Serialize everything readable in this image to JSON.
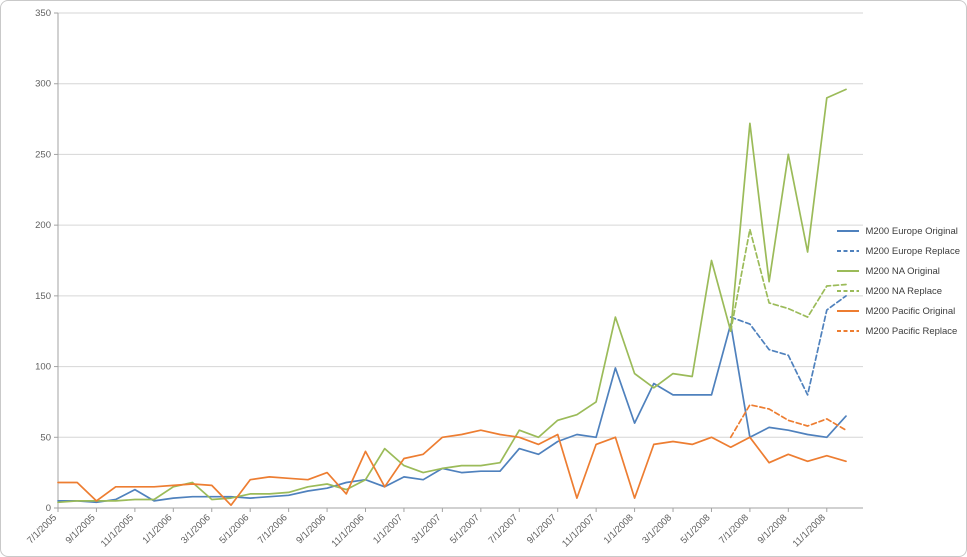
{
  "chart": {
    "background": "#FFFFFF",
    "frame_border_color": "#C9C9C9",
    "gridline_color": "#D6D6D6",
    "axis_color": "#A3A3A3",
    "tick_label_color": "#606060",
    "legend_text_color": "#3C3C3C"
  },
  "chart_data": {
    "type": "line",
    "title": "",
    "xlabel": "",
    "ylabel": "",
    "grid": true,
    "legend_position": "right",
    "ylim": [
      0,
      350
    ],
    "y_ticks": [
      0,
      50,
      100,
      150,
      200,
      250,
      300,
      350
    ],
    "x_tick_labels": [
      "7/1/2005",
      "9/1/2005",
      "11/1/2005",
      "1/1/2006",
      "3/1/2006",
      "5/1/2006",
      "7/1/2006",
      "9/1/2006",
      "11/1/2006",
      "1/1/2007",
      "3/1/2007",
      "5/1/2007",
      "7/1/2007",
      "9/1/2007",
      "11/1/2007",
      "1/1/2008",
      "3/1/2008",
      "5/1/2008",
      "7/1/2008",
      "9/1/2008",
      "11/1/2008"
    ],
    "x": [
      "7/1/2005",
      "8/1/2005",
      "9/1/2005",
      "10/1/2005",
      "11/1/2005",
      "12/1/2005",
      "1/1/2006",
      "2/1/2006",
      "3/1/2006",
      "4/1/2006",
      "5/1/2006",
      "6/1/2006",
      "7/1/2006",
      "8/1/2006",
      "9/1/2006",
      "10/1/2006",
      "11/1/2006",
      "12/1/2006",
      "1/1/2007",
      "2/1/2007",
      "3/1/2007",
      "4/1/2007",
      "5/1/2007",
      "6/1/2007",
      "7/1/2007",
      "8/1/2007",
      "9/1/2007",
      "10/1/2007",
      "11/1/2007",
      "12/1/2007",
      "1/1/2008",
      "2/1/2008",
      "3/1/2008",
      "4/1/2008",
      "5/1/2008",
      "6/1/2008",
      "7/1/2008",
      "8/1/2008",
      "9/1/2008",
      "10/1/2008",
      "11/1/2008",
      "12/1/2008"
    ],
    "series": [
      {
        "name": "M200 Europe Original",
        "color": "#4F81BD",
        "dash": "solid",
        "values": [
          5,
          5,
          4,
          6,
          13,
          5,
          7,
          8,
          8,
          8,
          7,
          8,
          9,
          12,
          14,
          18,
          20,
          15,
          22,
          20,
          28,
          25,
          26,
          26,
          42,
          38,
          47,
          52,
          50,
          99,
          60,
          88,
          80,
          80,
          80,
          130,
          50,
          57,
          55,
          52,
          50,
          65
        ]
      },
      {
        "name": "M200 Europe Replace",
        "color": "#4F81BD",
        "dash": "dashed",
        "values": [
          null,
          null,
          null,
          null,
          null,
          null,
          null,
          null,
          null,
          null,
          null,
          null,
          null,
          null,
          null,
          null,
          null,
          null,
          null,
          null,
          null,
          null,
          null,
          null,
          null,
          null,
          null,
          null,
          null,
          null,
          null,
          null,
          null,
          null,
          null,
          135,
          130,
          112,
          108,
          80,
          140,
          150
        ]
      },
      {
        "name": "M200 NA Original",
        "color": "#9BBB59",
        "dash": "solid",
        "values": [
          4,
          5,
          5,
          5,
          6,
          6,
          15,
          18,
          6,
          7,
          10,
          10,
          11,
          15,
          17,
          13,
          20,
          42,
          30,
          25,
          28,
          30,
          30,
          32,
          55,
          50,
          62,
          66,
          75,
          135,
          95,
          85,
          95,
          93,
          175,
          125,
          272,
          160,
          250,
          181,
          290,
          296
        ]
      },
      {
        "name": "M200 NA Replace",
        "color": "#9BBB59",
        "dash": "dashed",
        "values": [
          null,
          null,
          null,
          null,
          null,
          null,
          null,
          null,
          null,
          null,
          null,
          null,
          null,
          null,
          null,
          null,
          null,
          null,
          null,
          null,
          null,
          null,
          null,
          null,
          null,
          null,
          null,
          null,
          null,
          null,
          null,
          null,
          null,
          null,
          null,
          125,
          197,
          145,
          141,
          135,
          157,
          158
        ]
      },
      {
        "name": "M200 Pacific Original",
        "color": "#ED7D31",
        "dash": "solid",
        "values": [
          18,
          18,
          5,
          15,
          15,
          15,
          16,
          17,
          16,
          2,
          20,
          22,
          21,
          20,
          25,
          10,
          40,
          15,
          35,
          38,
          50,
          52,
          55,
          52,
          50,
          45,
          52,
          7,
          45,
          50,
          7,
          45,
          47,
          45,
          50,
          43,
          50,
          32,
          38,
          33,
          37,
          33
        ]
      },
      {
        "name": "M200 Pacific Replace",
        "color": "#ED7D31",
        "dash": "dashed",
        "values": [
          null,
          null,
          null,
          null,
          null,
          null,
          null,
          null,
          null,
          null,
          null,
          null,
          null,
          null,
          null,
          null,
          null,
          null,
          null,
          null,
          null,
          null,
          null,
          null,
          null,
          null,
          null,
          null,
          null,
          null,
          null,
          null,
          null,
          null,
          null,
          50,
          73,
          70,
          62,
          58,
          63,
          55
        ]
      }
    ]
  }
}
